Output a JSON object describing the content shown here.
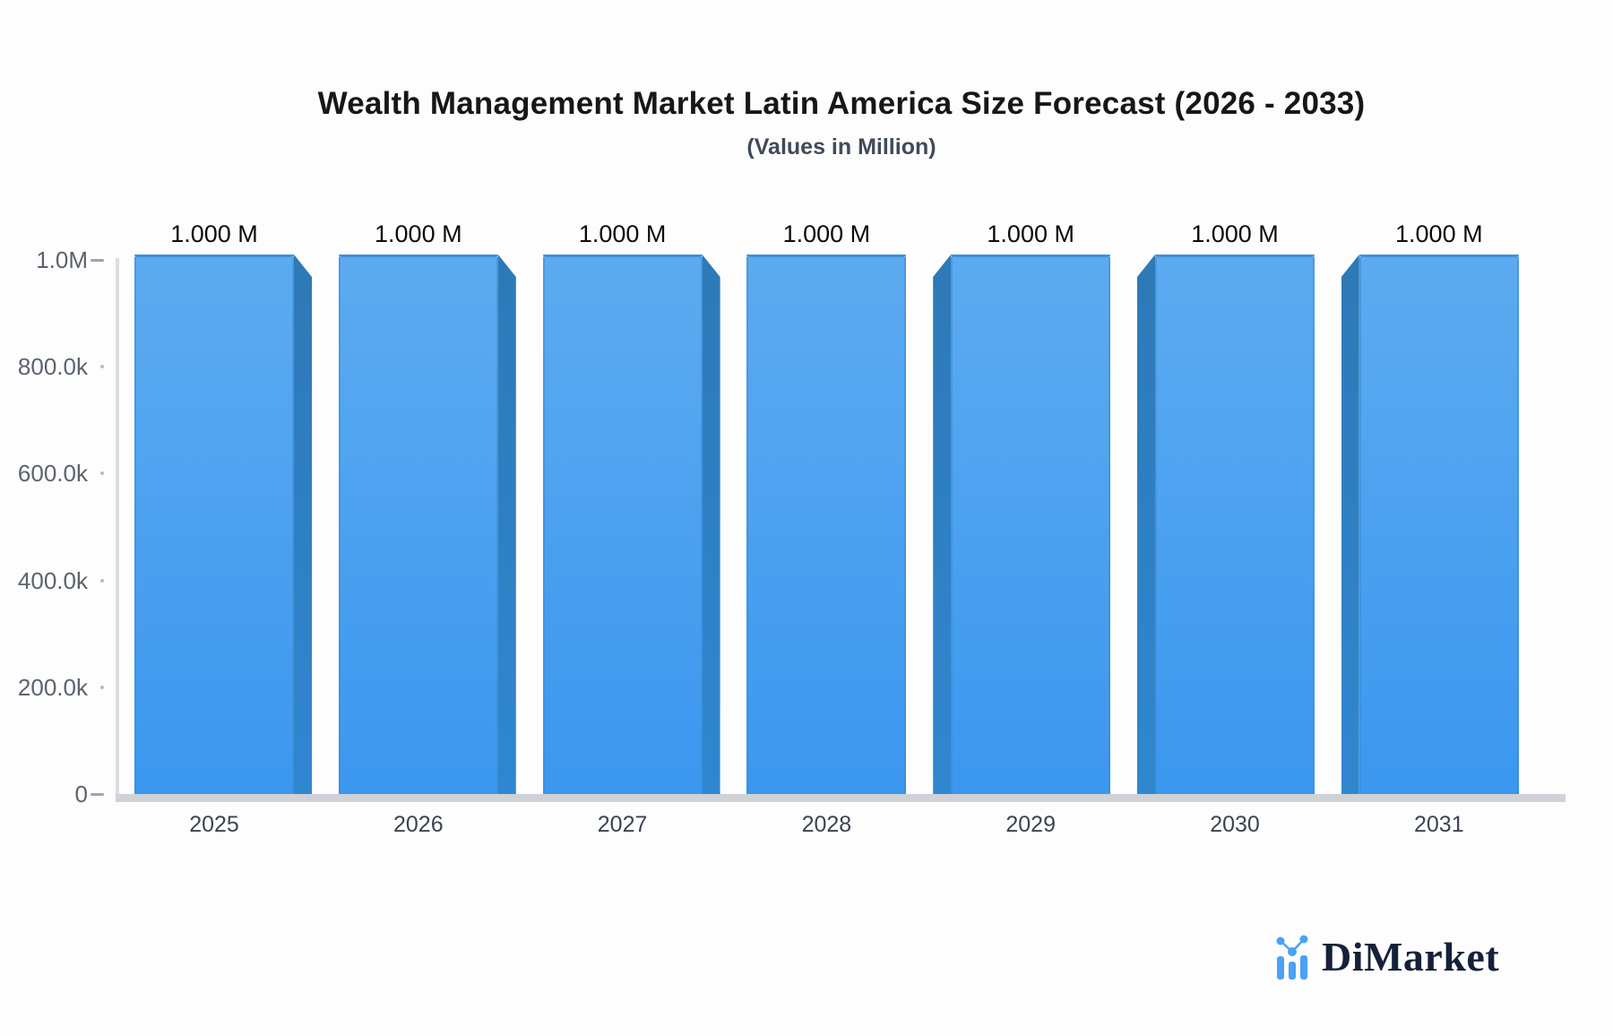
{
  "chart_data": {
    "type": "bar",
    "title": "Wealth Management Market Latin America Size Forecast (2026 - 2033)",
    "subtitle": "(Values in Million)",
    "categories": [
      "2025",
      "2026",
      "2027",
      "2028",
      "2029",
      "2030",
      "2031"
    ],
    "values": [
      1000000,
      1000000,
      1000000,
      1000000,
      1000000,
      1000000,
      1000000
    ],
    "value_labels": [
      "1.000 M",
      "1.000 M",
      "1.000 M",
      "1.000 M",
      "1.000 M",
      "1.000 M",
      "1.000 M"
    ],
    "xlabel": "",
    "ylabel": "",
    "ylim": [
      0,
      1000000
    ],
    "yticks": [
      {
        "label": "1.0M",
        "value": 1000000,
        "major": true
      },
      {
        "label": "800.0k",
        "value": 800000,
        "major": false
      },
      {
        "label": "600.0k",
        "value": 600000,
        "major": false
      },
      {
        "label": "400.0k",
        "value": 400000,
        "major": false
      },
      {
        "label": "200.0k",
        "value": 200000,
        "major": false
      },
      {
        "label": "0",
        "value": 0,
        "major": true
      }
    ],
    "grid": false,
    "legend": false,
    "bar_style": "3d-beveled-blue"
  },
  "colors": {
    "title": "#171717",
    "subtitle": "#414a59",
    "bar_face_top": "#5cabf0",
    "bar_face_bottom": "#3b97ef",
    "bar_border": "#4090d6",
    "bar_side_top": "#2e79b7",
    "bar_side_bottom": "#2f87d0",
    "axis_line": "#dbdde0",
    "baseline": "#cfd2d6",
    "tick_major": "#9fa4aa",
    "tick_minor": "#b7bbc1",
    "y_label": "#5b6370",
    "x_label": "#3c4450",
    "value_label": "#0c0c0c",
    "logo_blue": "#4aa2f6",
    "logo_text": "#152139"
  },
  "logo": {
    "text": "DiMarket",
    "icon": "bar-chart-trend-icon"
  }
}
